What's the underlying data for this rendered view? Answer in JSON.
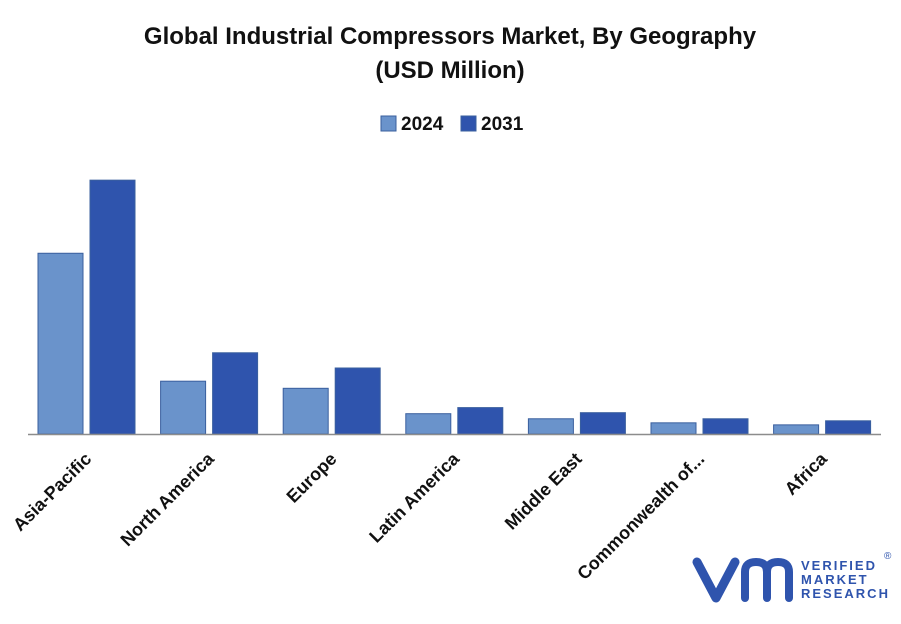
{
  "chart_data": {
    "type": "bar",
    "title": "Global Industrial Compressors Market, By Geography",
    "subtitle": "(USD Million)",
    "categories": [
      "Asia-Pacific",
      "North America",
      "Europe",
      "Latin America",
      "Middle East",
      "Commonwealth of...",
      "Africa"
    ],
    "series": [
      {
        "name": "2024",
        "color": "#6a93cb",
        "values": [
          178,
          52,
          45,
          20,
          15,
          11,
          9
        ]
      },
      {
        "name": "2031",
        "color": "#2f54ad",
        "values": [
          250,
          80,
          65,
          26,
          21,
          15,
          13
        ]
      }
    ],
    "ylim": [
      0,
      260
    ],
    "grid": false,
    "legend_position": "top-center"
  },
  "logo": {
    "mark": "vm",
    "line1": "VERIFIED",
    "line2": "MARKET",
    "line3": "RESEARCH",
    "registered": "®",
    "color": "#2f54ad"
  }
}
